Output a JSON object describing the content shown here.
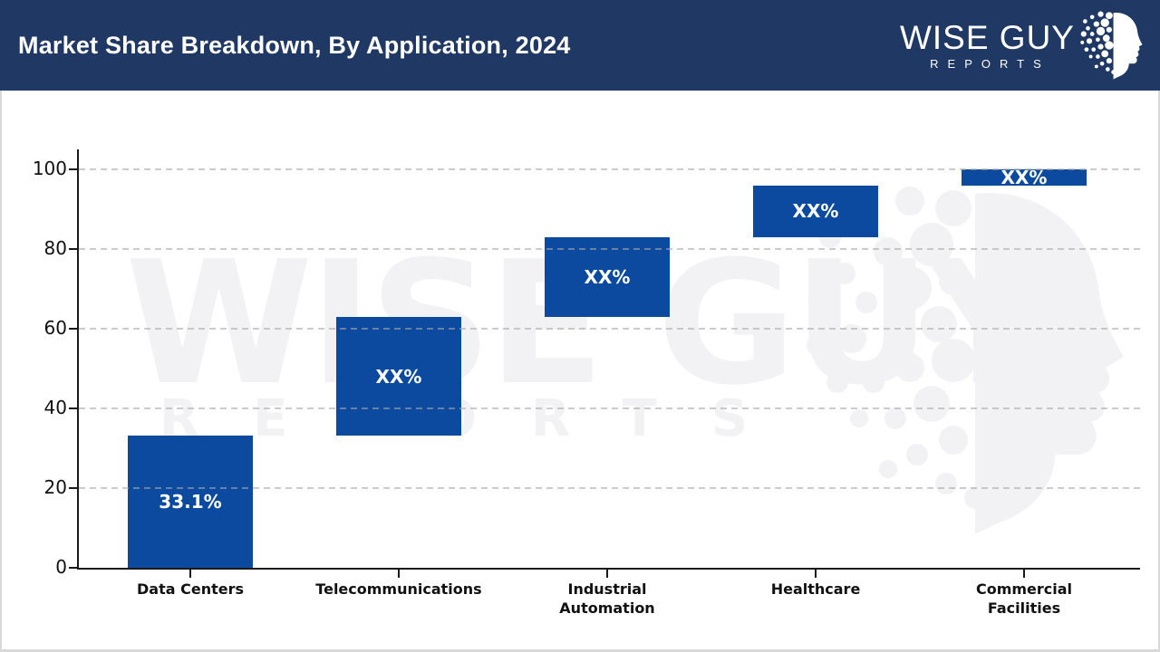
{
  "header": {
    "title": "Market Share Breakdown, By Application, 2024",
    "logo": {
      "line1": "WISE GUY",
      "line2": "REPORTS"
    }
  },
  "watermark": {
    "line1": "WISE GUY",
    "line2": "REPORTS"
  },
  "colors": {
    "header_bg": "#1F3864",
    "bar": "#0B4A9E",
    "bar_label": "#FFFFFF",
    "axis": "#1A1A1A",
    "grid": "#A8A8A8",
    "watermark": "#F2F2F4"
  },
  "chart_data": {
    "type": "bar",
    "variant": "waterfall",
    "title": "Market Share Breakdown, By Application, 2024",
    "categories": [
      "Data Centers",
      "Telecommunications",
      "Industrial Automation",
      "Healthcare",
      "Commercial Facilities"
    ],
    "category_label_lines": [
      [
        "Data Centers"
      ],
      [
        "Telecommunications"
      ],
      [
        "Industrial",
        "Automation"
      ],
      [
        "Healthcare"
      ],
      [
        "Commercial",
        "Facilities"
      ]
    ],
    "segments": [
      {
        "category": "Data Centers",
        "start": 0,
        "end": 33.1,
        "label": "33.1%"
      },
      {
        "category": "Telecommunications",
        "start": 33.1,
        "end": 63,
        "label": "XX%"
      },
      {
        "category": "Industrial Automation",
        "start": 63,
        "end": 83,
        "label": "XX%"
      },
      {
        "category": "Healthcare",
        "start": 83,
        "end": 96,
        "label": "XX%"
      },
      {
        "category": "Commercial Facilities",
        "start": 96,
        "end": 100,
        "label": "XX%"
      }
    ],
    "yticks": [
      0,
      20,
      40,
      60,
      80,
      100
    ],
    "ylim": [
      0,
      105
    ],
    "xlabel": "",
    "ylabel": "",
    "grid": "horizontal-dashed",
    "legend": "none"
  }
}
